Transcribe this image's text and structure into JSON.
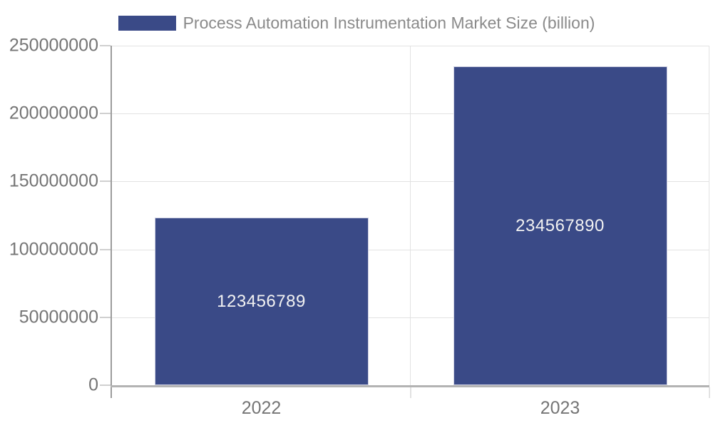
{
  "chart_data": {
    "type": "bar",
    "title": "Process Automation Instrumentation Market Size (billion)",
    "legend": [
      "Process Automation Instrumentation Market Size (billion)"
    ],
    "legend_position": "top-center",
    "categories": [
      "2022",
      "2023"
    ],
    "series": [
      {
        "name": "Process Automation Instrumentation Market Size (billion)",
        "values": [
          123456789,
          234567890
        ]
      }
    ],
    "bar_value_labels": [
      "123456789",
      "234567890"
    ],
    "xlabel": "",
    "ylabel": "",
    "ylim": [
      0,
      250000000
    ],
    "yticks": [
      0,
      50000000,
      100000000,
      150000000,
      200000000,
      250000000
    ],
    "grid": true,
    "colors": {
      "bar": "#3A4A87",
      "bar_label": "#F2F2F2",
      "legend_text": "#8A8A8A",
      "axis_label": "#757575",
      "grid_line": "#E2E2E2",
      "y_axis_line": "#9C9C9C",
      "x_axis_line": "#B3B3B3",
      "tick": "#D0D0D0"
    }
  }
}
